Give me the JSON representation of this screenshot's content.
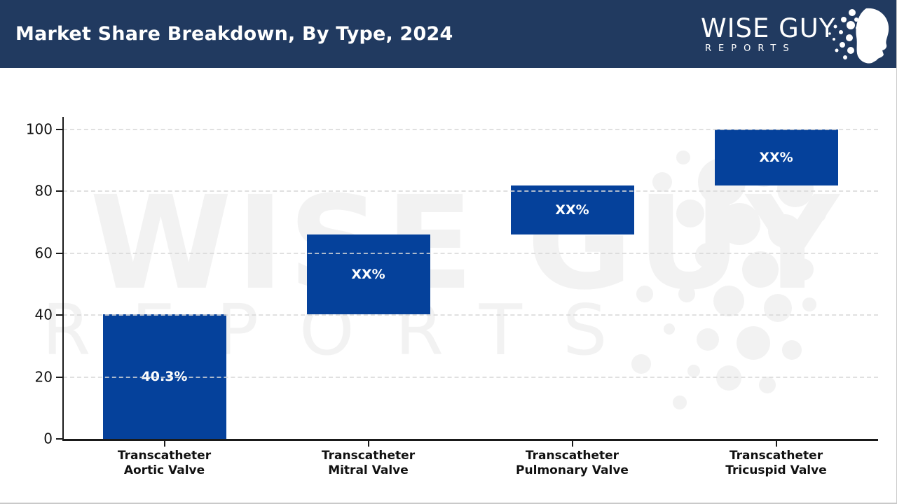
{
  "header": {
    "title": "Market Share Breakdown, By Type, 2024",
    "bg_color": "#213a60",
    "logo": {
      "line1": "WISE GUY",
      "line2": "REPORTS",
      "icon": "dotted-head-profile"
    }
  },
  "watermark": {
    "line1": "WISE GUY",
    "line2": "REPORTS",
    "color": "#f2f2f2"
  },
  "chart_data": {
    "type": "bar",
    "subtype": "waterfall",
    "title": "Market Share Breakdown, By Type, 2024",
    "categories": [
      [
        "Transcatheter",
        "Aortic Valve"
      ],
      [
        "Transcatheter",
        "Mitral Valve"
      ],
      [
        "Transcatheter",
        "Pulmonary Valve"
      ],
      [
        "Transcatheter",
        "Tricuspid Valve"
      ]
    ],
    "segments": [
      {
        "label": "40.3%",
        "start": 0,
        "end": 40.3
      },
      {
        "label": "XX%",
        "start": 40.3,
        "end": 66
      },
      {
        "label": "XX%",
        "start": 66,
        "end": 82
      },
      {
        "label": "XX%",
        "start": 82,
        "end": 100
      }
    ],
    "y_ticks": [
      0,
      20,
      40,
      60,
      80,
      100
    ],
    "ylim": [
      0,
      105
    ],
    "xlabel": "",
    "ylabel": "",
    "bar_color": "#05419b",
    "label_color": "#ffffff",
    "grid": {
      "axis": "y",
      "style": "dashed",
      "color": "#d9d9d9"
    },
    "legend": "none"
  }
}
